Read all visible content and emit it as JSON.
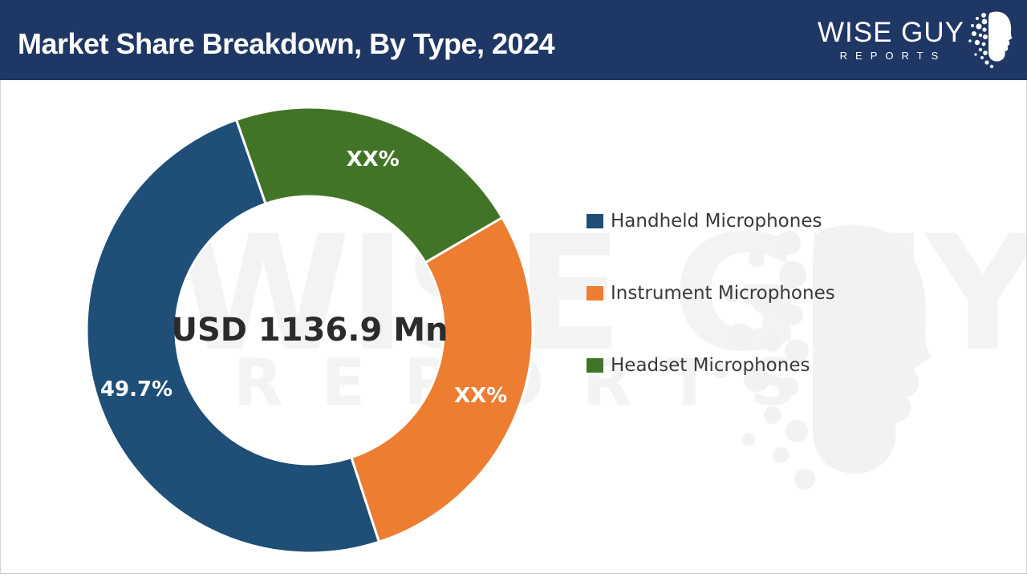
{
  "header": {
    "title": "Market Share Breakdown, By Type, 2024",
    "background_color": "#1F3764",
    "logo": {
      "line1": "WISE GUY",
      "line2": "REPORTS"
    }
  },
  "watermark": {
    "line1": "WISE GUY",
    "line2": "REPORTS"
  },
  "chart_data": {
    "type": "pie",
    "subtype": "donut",
    "title": "Market Share Breakdown, By Type, 2024",
    "center_label": "USD 1136.9 Mn",
    "total_value_usd_mn": 1136.9,
    "start_angle": 109.2,
    "counterclockwise": true,
    "legend_position": "right",
    "slices": [
      {
        "name": "Handheld Microphones",
        "value": 49.7,
        "label": "49.7%",
        "color": "#1F4E76"
      },
      {
        "name": "Instrument Microphones",
        "value": 28.4,
        "label": "XX%",
        "color": "#ED7D31"
      },
      {
        "name": "Headset Microphones",
        "value": 21.9,
        "label": "XX%",
        "color": "#427428"
      }
    ]
  }
}
